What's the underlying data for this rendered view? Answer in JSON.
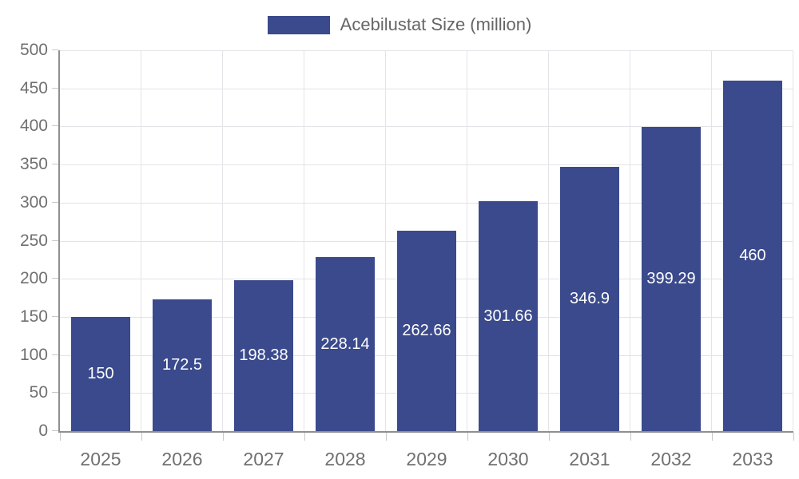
{
  "chart_data": {
    "type": "bar",
    "title": "",
    "legend": "Acebilustat Size (million)",
    "legend_position": "top-center",
    "categories": [
      "2025",
      "2026",
      "2027",
      "2028",
      "2029",
      "2030",
      "2031",
      "2032",
      "2033"
    ],
    "values": [
      150,
      172.5,
      198.38,
      228.14,
      262.66,
      301.66,
      346.9,
      399.29,
      460
    ],
    "value_labels": [
      "150",
      "172.5",
      "198.38",
      "228.14",
      "262.66",
      "301.66",
      "346.9",
      "399.29",
      "460"
    ],
    "xlabel": "",
    "ylabel": "",
    "ylim": [
      0,
      500
    ],
    "yticks": [
      0,
      50,
      100,
      150,
      200,
      250,
      300,
      350,
      400,
      450,
      500
    ],
    "grid": true,
    "bar_color": "#3A4A8C",
    "value_label_color": "#FFFFFF"
  },
  "legend": {
    "label": "Acebilustat Size (million)",
    "swatch_color": "#3A4A8C"
  }
}
